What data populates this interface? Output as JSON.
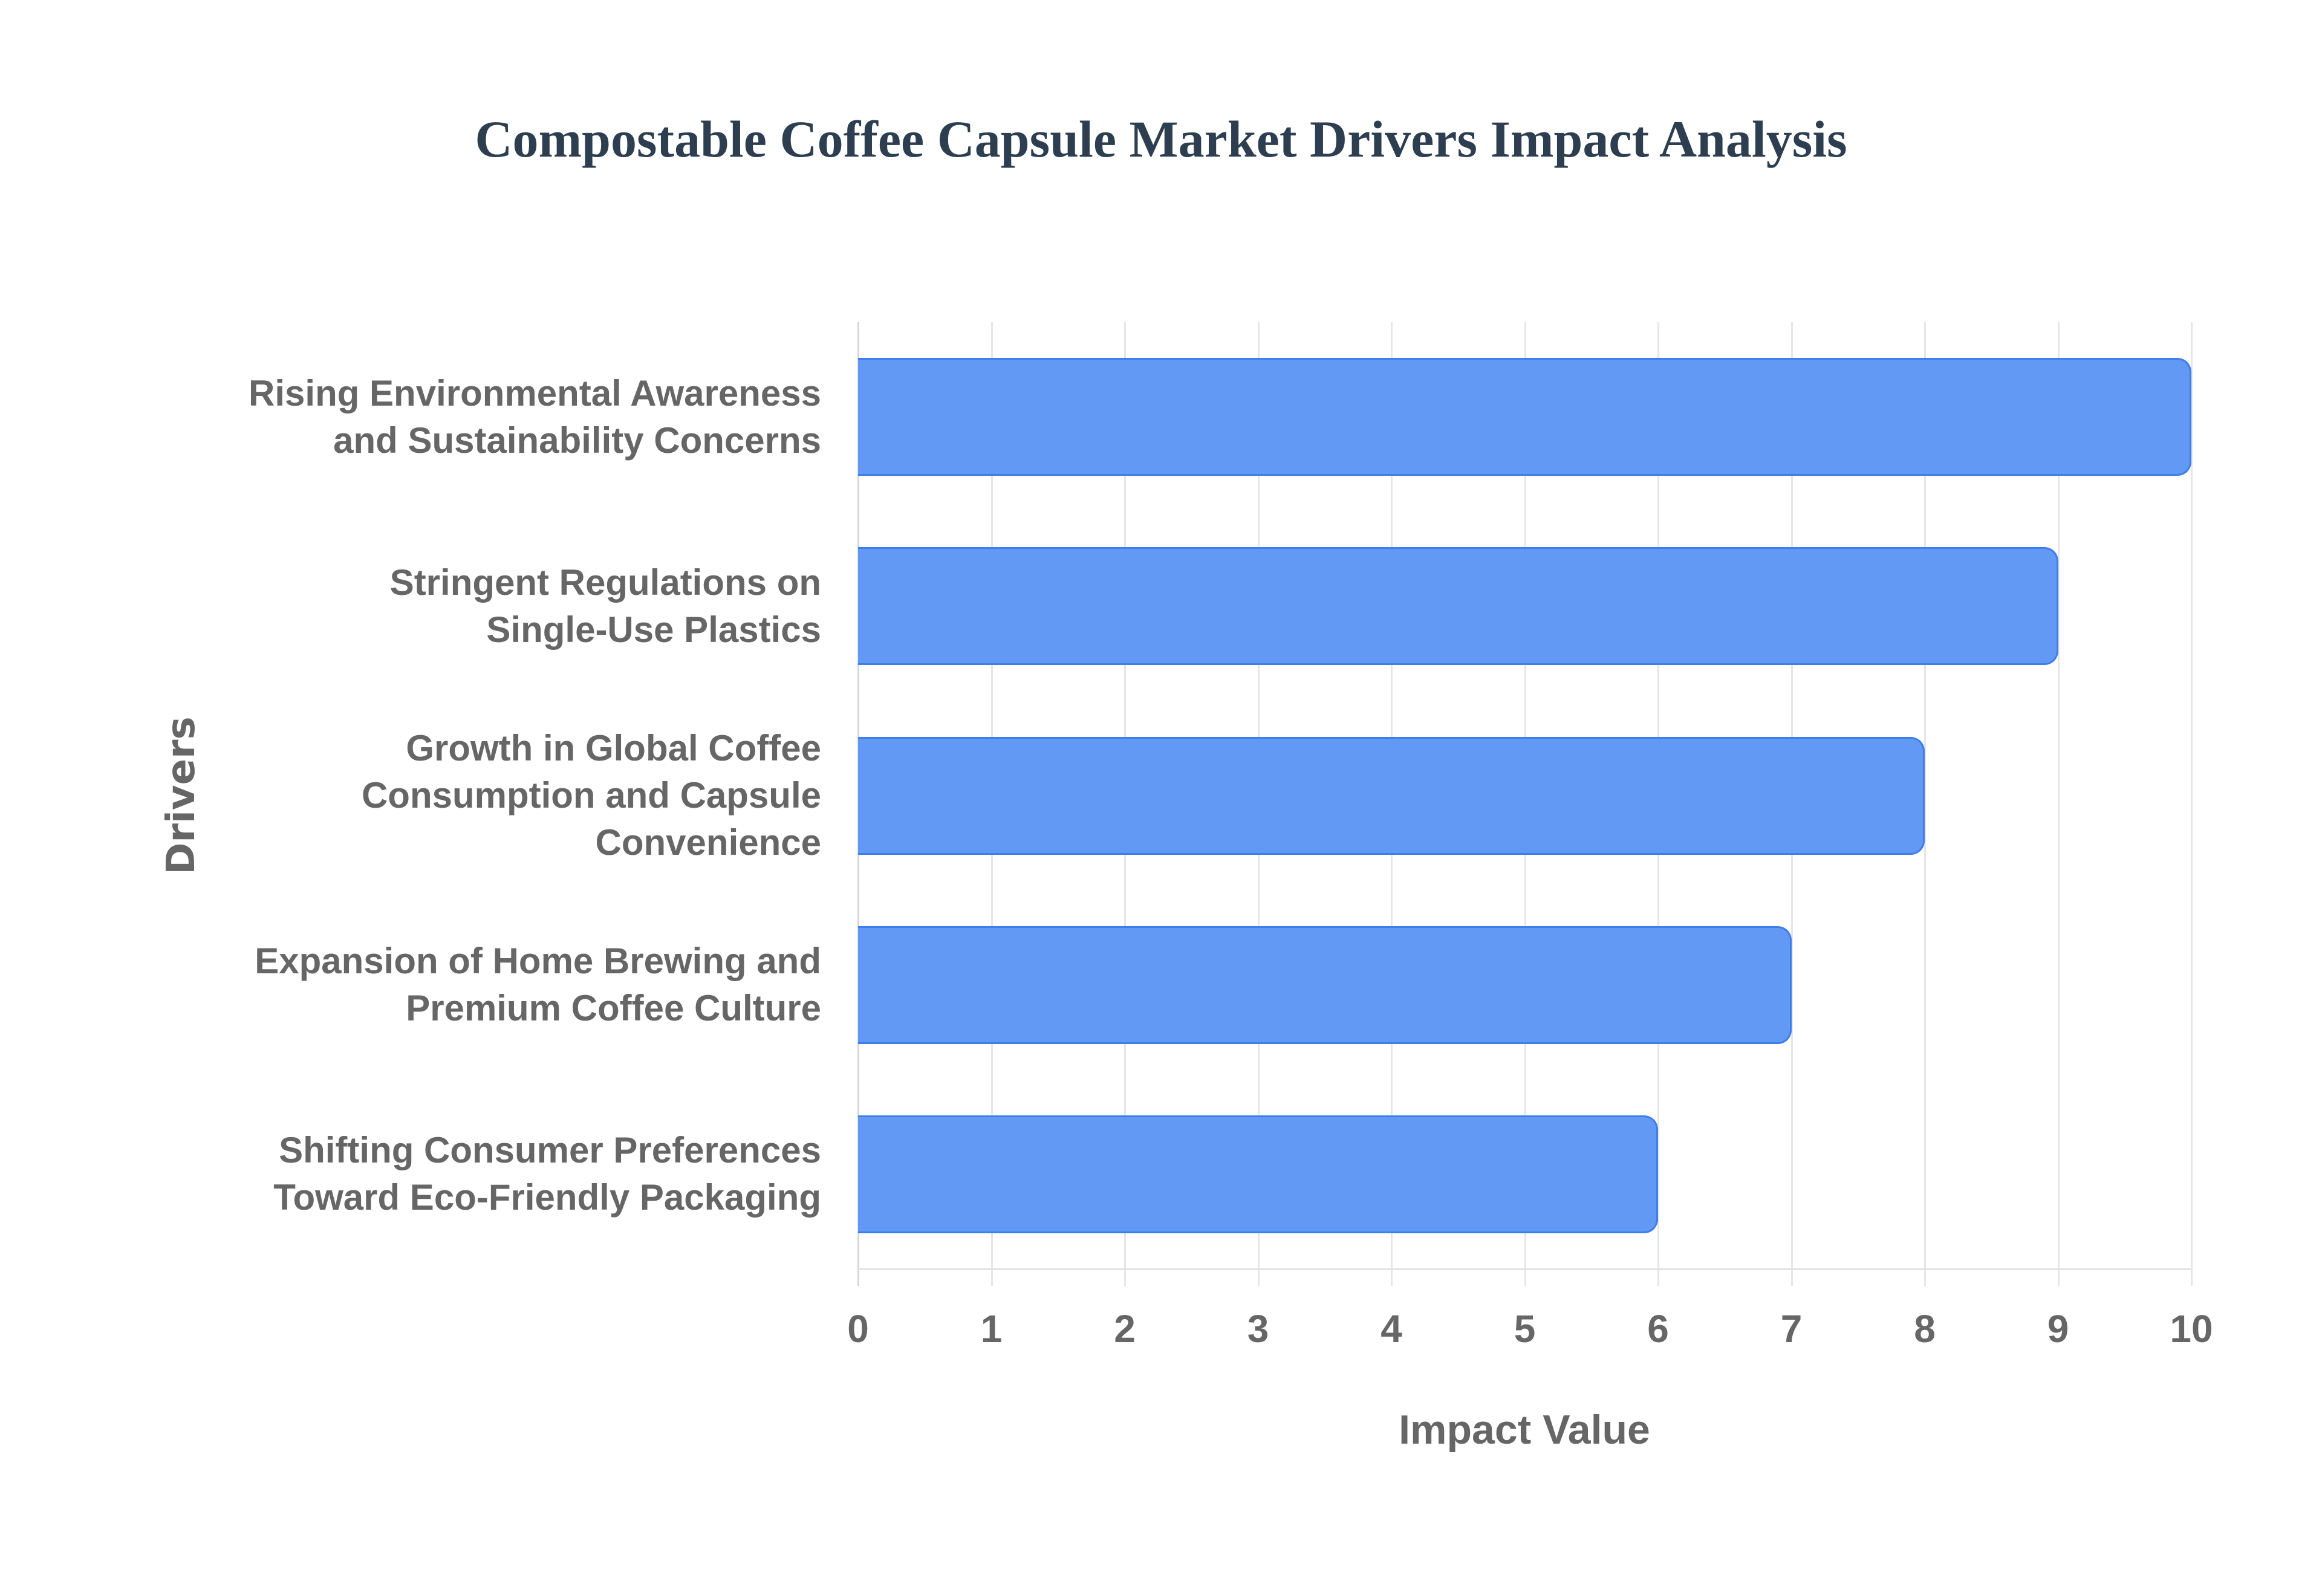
{
  "title": "Compostable Coffee Capsule Market Drivers Impact Analysis",
  "colors": {
    "bar_fill": "#6199f5",
    "bar_border": "#3d7eea",
    "title": "#2c3e50",
    "axis_text": "#666666",
    "grid": "#e6e6e6"
  },
  "x_axis": {
    "title": "Impact Value",
    "ticks": [
      "0",
      "1",
      "2",
      "3",
      "4",
      "5",
      "6",
      "7",
      "8",
      "9",
      "10"
    ]
  },
  "y_axis": {
    "title": "Drivers"
  },
  "bars": [
    {
      "lines": [
        "Rising Environmental Awareness",
        "and Sustainability Concerns"
      ],
      "value": 10
    },
    {
      "lines": [
        "Stringent Regulations on",
        "Single-Use Plastics"
      ],
      "value": 9
    },
    {
      "lines": [
        "Growth in Global Coffee",
        "Consumption and Capsule",
        "Convenience"
      ],
      "value": 8
    },
    {
      "lines": [
        "Expansion of Home Brewing and",
        "Premium Coffee Culture"
      ],
      "value": 7
    },
    {
      "lines": [
        "Shifting Consumer Preferences",
        "Toward Eco-Friendly Packaging"
      ],
      "value": 6
    }
  ],
  "chart_data": {
    "type": "bar",
    "orientation": "horizontal",
    "title": "Compostable Coffee Capsule Market Drivers Impact Analysis",
    "xlabel": "Impact Value",
    "ylabel": "Drivers",
    "categories": [
      "Rising Environmental Awareness and Sustainability Concerns",
      "Stringent Regulations on Single-Use Plastics",
      "Growth in Global Coffee Consumption and Capsule Convenience",
      "Expansion of Home Brewing and Premium Coffee Culture",
      "Shifting Consumer Preferences Toward Eco-Friendly Packaging"
    ],
    "values": [
      10,
      9,
      8,
      7,
      6
    ],
    "xlim": [
      0,
      10
    ],
    "xticks": [
      0,
      1,
      2,
      3,
      4,
      5,
      6,
      7,
      8,
      9,
      10
    ],
    "grid": true,
    "legend": false
  }
}
